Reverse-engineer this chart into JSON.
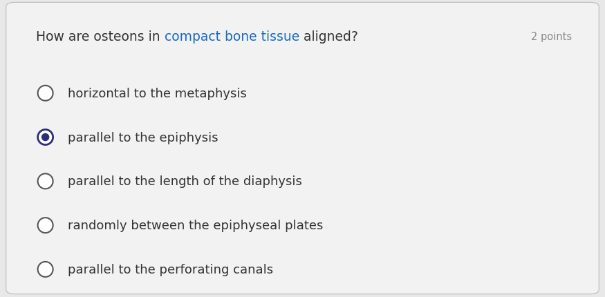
{
  "question_parts": [
    {
      "text": "How are osteons in ",
      "color": "#333333"
    },
    {
      "text": "compact bone tissue",
      "color": "#1a6bbf"
    },
    {
      "text": " aligned?",
      "color": "#333333"
    }
  ],
  "points_label": "2 points",
  "options": [
    {
      "text": "horizontal to the metaphysis",
      "selected": false
    },
    {
      "text": "parallel to the epiphysis",
      "selected": true
    },
    {
      "text": "parallel to the length of the diaphysis",
      "selected": false
    },
    {
      "text": "randomly between the epiphyseal plates",
      "selected": false
    },
    {
      "text": "parallel to the perforating canals",
      "selected": false
    }
  ],
  "bg_color": "#e8e8e8",
  "card_color": "#f2f2f2",
  "text_color": "#333333",
  "points_color": "#888888",
  "selected_outer_color": "#2d2d7a",
  "selected_inner_color": "#2d2d7a",
  "unselected_edge_color": "#555555",
  "font_size_question": 13.5,
  "font_size_options": 13,
  "font_size_points": 10.5
}
